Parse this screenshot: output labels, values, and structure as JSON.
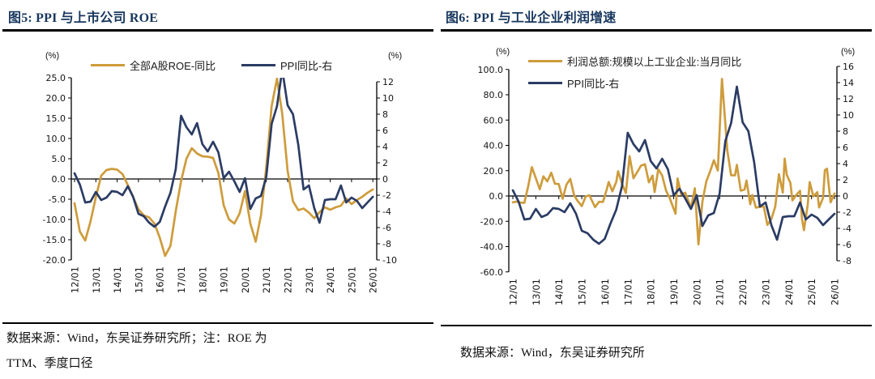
{
  "colors": {
    "gold": "#CE9C3C",
    "navy": "#2B3C64",
    "title": "#17365D",
    "axis": "#000000"
  },
  "left_panel": {
    "title": "图5:  PPI 与上市公司 ROE",
    "source_note_line1": "数据来源：Wind，东吴证券研究所；注：ROE 为",
    "source_note_line2": "TTM、季度口径"
  },
  "right_panel": {
    "title": "图6:  PPI 与工业企业利润增速",
    "source_note": "数据来源：Wind，东吴证券研究所"
  },
  "chart_data": [
    {
      "type": "line",
      "title": "图5: PPI 与上市公司 ROE",
      "legend_position": "top-center-row",
      "grid": false,
      "x_tick_labels": [
        "12/01",
        "13/01",
        "14/01",
        "15/01",
        "16/01",
        "17/01",
        "18/01",
        "19/01",
        "20/01",
        "21/01",
        "22/01",
        "23/01",
        "24/01",
        "25/01",
        "26/01"
      ],
      "left_axis": {
        "unit": "(%)",
        "min": -20,
        "max": 25,
        "tick_labels": [
          "25.0",
          "20.0",
          "15.0",
          "10.0",
          "5.0",
          "0.0",
          "-5.0",
          "-10.0",
          "-15.0",
          "-20.0"
        ]
      },
      "right_axis": {
        "unit": "(%)",
        "min": -10,
        "max": 12,
        "tick_labels": [
          "12",
          "10",
          "8",
          "6",
          "4",
          "2",
          "0",
          "-2",
          "-4",
          "-6",
          "-8",
          "-10"
        ]
      },
      "series": [
        {
          "name": "全部A股ROE-同比",
          "color_key": "gold",
          "axis": "left",
          "x_start": 12,
          "x_step": 0.25,
          "values": [
            -6,
            -13,
            -15.2,
            -10.5,
            -4.5,
            0.8,
            2.2,
            2.5,
            2.3,
            1.2,
            -1.5,
            -4.5,
            -7.5,
            -9,
            -9.5,
            -11,
            -14.5,
            -19,
            -16.5,
            -8,
            -0.5,
            5,
            7.6,
            6.3,
            5.6,
            5.5,
            5.2,
            1.5,
            -6.5,
            -10,
            -11,
            -8.5,
            -3,
            -11,
            -15.5,
            -9,
            3,
            18,
            24.8,
            16,
            2,
            -5.5,
            -7.7,
            -7.3,
            -8.3,
            -9.7,
            -8.2,
            -7,
            -7.6,
            -7,
            -6.6,
            -4.8,
            -6.2,
            -5.2,
            -4.4,
            -3.4,
            -2.6
          ]
        },
        {
          "name": "PPI同比-右",
          "color_key": "navy",
          "axis": "right",
          "x_start": 12,
          "x_step": 0.25,
          "values": [
            0.7,
            -0.7,
            -2.9,
            -2.8,
            -1.6,
            -2.6,
            -2.3,
            -1.5,
            -1.6,
            -2.0,
            -0.9,
            -2.2,
            -4.3,
            -4.6,
            -5.4,
            -5.9,
            -5.3,
            -3.4,
            -1.7,
            1.2,
            7.8,
            6.4,
            5.5,
            6.9,
            4.3,
            3.4,
            4.6,
            3.3,
            0.1,
            0.9,
            -0.3,
            -1.6,
            0.1,
            -3.7,
            -2.4,
            -2.1,
            0.3,
            6.8,
            9.0,
            13.5,
            9.1,
            8.0,
            4.2,
            -1.3,
            -0.8,
            -3.6,
            -5.4,
            -2.6,
            -2.5,
            -2.5,
            -0.8,
            -2.9,
            -2.3,
            -2.7,
            -3.6,
            -2.9,
            -2.2
          ]
        }
      ]
    },
    {
      "type": "line",
      "title": "图6: PPI 与工业企业利润增速",
      "legend_position": "top-left-stacked",
      "grid": false,
      "x_tick_labels": [
        "12/01",
        "13/01",
        "14/01",
        "15/01",
        "16/01",
        "17/01",
        "18/01",
        "19/01",
        "20/01",
        "21/01",
        "22/01",
        "23/01",
        "24/01",
        "25/01",
        "26/01"
      ],
      "left_axis": {
        "unit": "(%)",
        "min": -60,
        "max": 100,
        "tick_labels": [
          "100.0",
          "80.0",
          "60.0",
          "40.0",
          "20.0",
          "0.0",
          "-20.0",
          "-40.0",
          "-60.0"
        ]
      },
      "right_axis": {
        "unit": "(%)",
        "min": -8,
        "max": 16,
        "tick_labels": [
          "16",
          "14",
          "12",
          "10",
          "8",
          "6",
          "4",
          "2",
          "0",
          "-2",
          "-4",
          "-6",
          "-8"
        ]
      },
      "series": [
        {
          "name": "利润总额:规模以上工业企业:当月同比",
          "color_key": "gold",
          "axis": "left",
          "x": [
            12.0,
            12.17,
            12.33,
            12.5,
            12.67,
            12.83,
            13.0,
            13.17,
            13.33,
            13.5,
            13.67,
            13.83,
            14.0,
            14.17,
            14.33,
            14.5,
            14.67,
            14.83,
            15.0,
            15.17,
            15.33,
            15.58,
            15.75,
            15.92,
            16.08,
            16.17,
            16.33,
            16.5,
            16.58,
            16.75,
            16.92,
            17.08,
            17.25,
            17.42,
            17.58,
            17.75,
            17.92,
            18.08,
            18.17,
            18.33,
            18.5,
            18.67,
            18.83,
            19.08,
            19.17,
            19.33,
            19.5,
            19.67,
            19.75,
            19.92,
            20.08,
            20.25,
            20.42,
            20.58,
            20.75,
            20.92,
            21.1,
            21.25,
            21.33,
            21.5,
            21.67,
            21.75,
            21.92,
            22.08,
            22.17,
            22.33,
            22.42,
            22.58,
            22.75,
            22.92,
            23.08,
            23.25,
            23.42,
            23.58,
            23.75,
            23.83,
            23.92,
            24.08,
            24.17,
            24.33,
            24.5,
            24.58,
            24.67,
            24.83,
            24.92,
            25.08,
            25.25,
            25.33,
            25.5,
            25.58,
            25.67,
            25.83,
            26.0
          ],
          "values": [
            -5,
            -4.5,
            -5.3,
            -5.4,
            7.8,
            22.8,
            14,
            5.3,
            15.5,
            11.6,
            18.4,
            9.7,
            9.4,
            -2.2,
            8.9,
            13.5,
            0.4,
            -4.2,
            -8,
            -0.4,
            0.6,
            -8.8,
            -4.6,
            -4.7,
            4.8,
            11.1,
            3.7,
            11.0,
            19.5,
            9.8,
            2.3,
            31.5,
            14.0,
            19.1,
            24.0,
            25.1,
            10.8,
            16.1,
            3.1,
            21.1,
            16.2,
            4.1,
            -1.8,
            -14.0,
            13.9,
            1.1,
            2.6,
            -5.3,
            -9.9,
            6.1,
            -38.3,
            -4.3,
            11.5,
            19.1,
            28.2,
            20.1,
            92.5,
            57.0,
            36.4,
            16.4,
            16.3,
            24.6,
            4.2,
            5.0,
            12.2,
            -6.5,
            0.8,
            -9.2,
            -8.6,
            -8.3,
            -22.9,
            -18.2,
            -8.3,
            17.2,
            2.7,
            29.5,
            16.8,
            10.2,
            -3.5,
            0.7,
            4.1,
            -17.8,
            -27.1,
            -7.3,
            11.0,
            -0.3,
            3.0,
            -9.1,
            -1.5,
            20.4,
            21.6,
            -5,
            2
          ]
        },
        {
          "name": "PPI同比-右",
          "color_key": "navy",
          "axis": "right",
          "x_start": 12,
          "x_step": 0.25,
          "values": [
            0.7,
            -0.7,
            -2.9,
            -2.8,
            -1.6,
            -2.6,
            -2.3,
            -1.5,
            -1.6,
            -2.0,
            -0.9,
            -2.2,
            -4.3,
            -4.6,
            -5.4,
            -5.9,
            -5.3,
            -3.4,
            -1.7,
            1.2,
            7.8,
            6.4,
            5.5,
            6.9,
            4.3,
            3.4,
            4.6,
            3.3,
            0.1,
            0.9,
            -0.3,
            -1.6,
            0.1,
            -3.7,
            -2.4,
            -2.1,
            0.3,
            6.8,
            9.0,
            13.5,
            9.1,
            8.0,
            4.2,
            -1.3,
            -0.8,
            -3.6,
            -5.4,
            -2.6,
            -2.5,
            -2.5,
            -0.8,
            -2.9,
            -2.3,
            -2.7,
            -3.6,
            -2.9,
            -2.2
          ]
        }
      ]
    }
  ]
}
